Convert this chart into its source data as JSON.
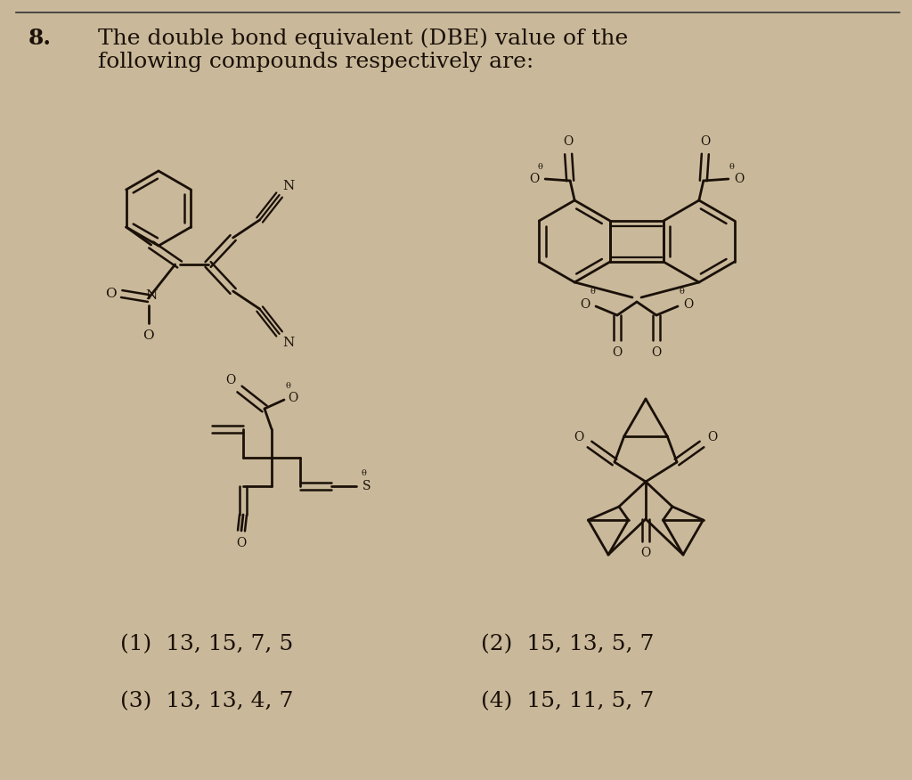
{
  "background_color": "#c9b99a",
  "question_number": "8.",
  "question_text": "The double bond equivalent (DBE) value of the\nfollowing compounds respectively are:",
  "options": [
    {
      "label": "(1)",
      "text": "13, 15, 7, 5"
    },
    {
      "label": "(2)",
      "text": "15, 13, 5, 7"
    },
    {
      "label": "(3)",
      "text": "13, 13, 4, 7"
    },
    {
      "label": "(4)",
      "text": "15, 11, 5, 7"
    }
  ],
  "title_fontsize": 18,
  "option_fontsize": 18,
  "text_color": "#1a1008",
  "fig_width": 10.24,
  "fig_height": 8.76,
  "dpi": 100
}
